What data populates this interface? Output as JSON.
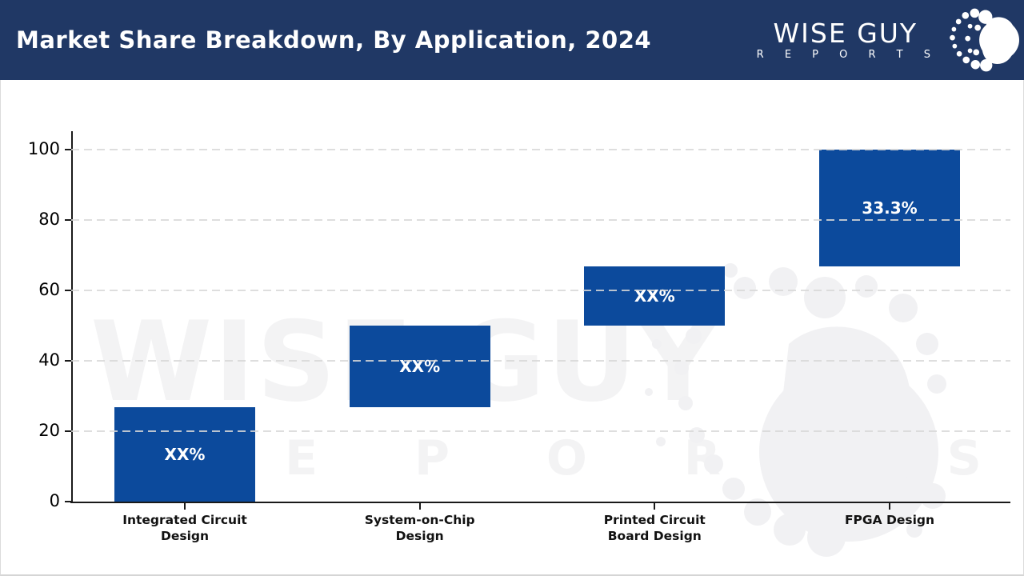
{
  "header": {
    "title": "Market Share Breakdown, By Application, 2024",
    "bg_color": "#203865",
    "logo": {
      "line1": "WISE GUY",
      "line2": "R E P O R T S"
    }
  },
  "watermark": {
    "line1": "WISE GUY",
    "line2": "R E P O R T S"
  },
  "chart_data": {
    "type": "bar",
    "subtype": "floating-segment-waterfall",
    "title": "Market Share Breakdown, By Application, 2024",
    "categories": [
      [
        "Integrated Circuit",
        "Design"
      ],
      [
        "System-on-Chip",
        "Design"
      ],
      [
        "Printed Circuit",
        "Board Design"
      ],
      [
        "FPGA Design"
      ]
    ],
    "series": [
      {
        "name": "Market share (%)",
        "segments": [
          {
            "from": 0,
            "to": 26.7,
            "label": "XX%"
          },
          {
            "from": 26.7,
            "to": 50,
            "label": "XX%"
          },
          {
            "from": 50,
            "to": 66.7,
            "label": "XX%"
          },
          {
            "from": 66.7,
            "to": 100,
            "label": "33.3%"
          }
        ]
      }
    ],
    "xlabel": "",
    "ylabel": "",
    "ylim": [
      0,
      100
    ],
    "yticks": [
      0,
      20,
      40,
      60,
      80,
      100
    ],
    "grid": "horizontal-dashed",
    "legend": "none",
    "bar_color": "#0c4a9c",
    "label_color": "#ffffff"
  }
}
